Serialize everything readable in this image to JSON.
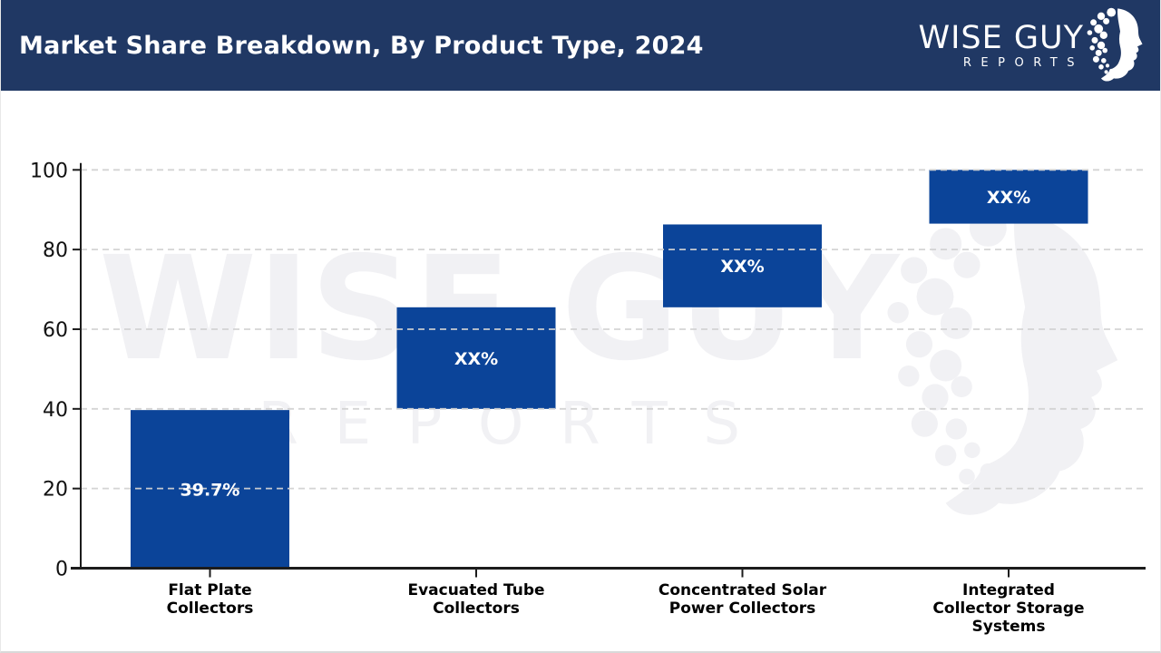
{
  "header": {
    "title": "Market Share Breakdown, By Product Type, 2024",
    "logo": {
      "wordmark": "WISE GUY",
      "subtext": "REPORTS"
    }
  },
  "watermark": {
    "wordmark": "WISE GUY",
    "subtext": "REPORTS"
  },
  "colors": {
    "header_bg": "#203864",
    "bar": "#0b4499",
    "bar_label": "#ffffff",
    "grid": "#d2d2d2",
    "axis": "#1c1c1c",
    "tick_label": "#111111",
    "category_label": "#000000",
    "watermark": "#f1f1f4"
  },
  "chart_data": {
    "type": "bar",
    "variant": "floating-segment waterfall of market share",
    "title": "Market Share Breakdown, By Product Type, 2024",
    "categories": [
      "Flat Plate Collectors",
      "Evacuated Tube Collectors",
      "Concentrated Solar Power Collectors",
      "Integrated Collector Storage Systems"
    ],
    "categories_lines": [
      [
        "Flat Plate",
        "Collectors"
      ],
      [
        "Evacuated Tube",
        "Collectors"
      ],
      [
        "Concentrated Solar",
        "Power Collectors"
      ],
      [
        "Integrated",
        "Collector Storage",
        "Systems"
      ]
    ],
    "segments": [
      {
        "from": 0,
        "to": 39.7,
        "label": "39.7%"
      },
      {
        "from": 40,
        "to": 65.5,
        "label": "XX%"
      },
      {
        "from": 65.5,
        "to": 86.3,
        "label": "XX%"
      },
      {
        "from": 86.5,
        "to": 100,
        "label": "XX%"
      }
    ],
    "yticks": [
      0,
      20,
      40,
      60,
      80,
      100
    ],
    "ylim": [
      0,
      104
    ],
    "xlabel": "",
    "ylabel": "",
    "grid": "horizontal dashed, drawn over bars",
    "legend": "none"
  }
}
